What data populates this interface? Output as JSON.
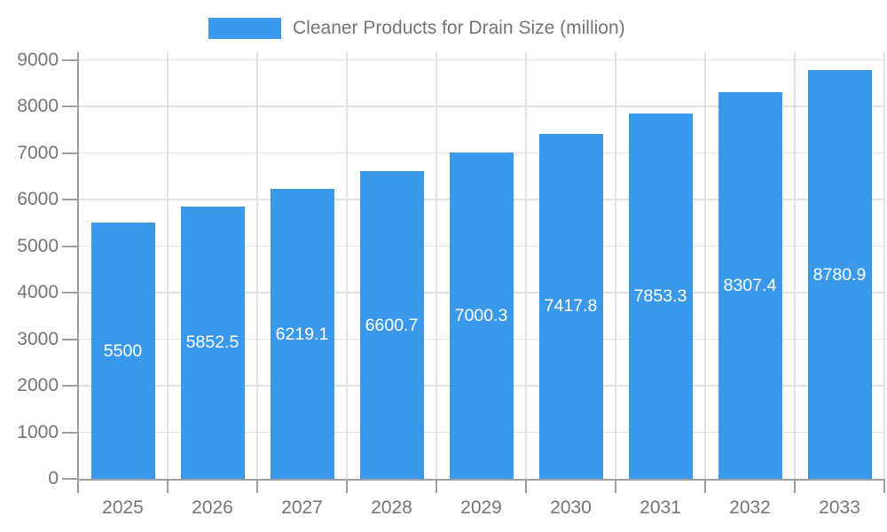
{
  "chart_data": {
    "type": "bar",
    "title": "",
    "legend": {
      "position": "top",
      "label": "Cleaner Products for Drain Size (million)"
    },
    "categories": [
      "2025",
      "2026",
      "2027",
      "2028",
      "2029",
      "2030",
      "2031",
      "2032",
      "2033"
    ],
    "series": [
      {
        "name": "Cleaner Products for Drain Size (million)",
        "values": [
          5500,
          5852.5,
          6219.1,
          6600.7,
          7000.3,
          7417.8,
          7853.3,
          8307.4,
          8780.9
        ],
        "value_labels": [
          "5500",
          "5852.5",
          "6219.1",
          "6600.7",
          "7000.3",
          "7417.8",
          "7853.3",
          "8307.4",
          "8780.9"
        ]
      }
    ],
    "xlabel": "",
    "ylabel": "",
    "ylim": [
      0,
      9000
    ],
    "ytick_labels": [
      "0",
      "1000",
      "2000",
      "3000",
      "4000",
      "5000",
      "6000",
      "7000",
      "8000",
      "9000"
    ],
    "grid": true,
    "bar_value_labels_inside": true,
    "colors": {
      "bar": "#3B99EC",
      "grid": "#E2E2E2",
      "axis": "#9E9E9E",
      "tick_text": "#757575",
      "legend_text": "#757575",
      "bar_label_text": "#FFFFFF",
      "background": "#FFFFFF"
    }
  }
}
